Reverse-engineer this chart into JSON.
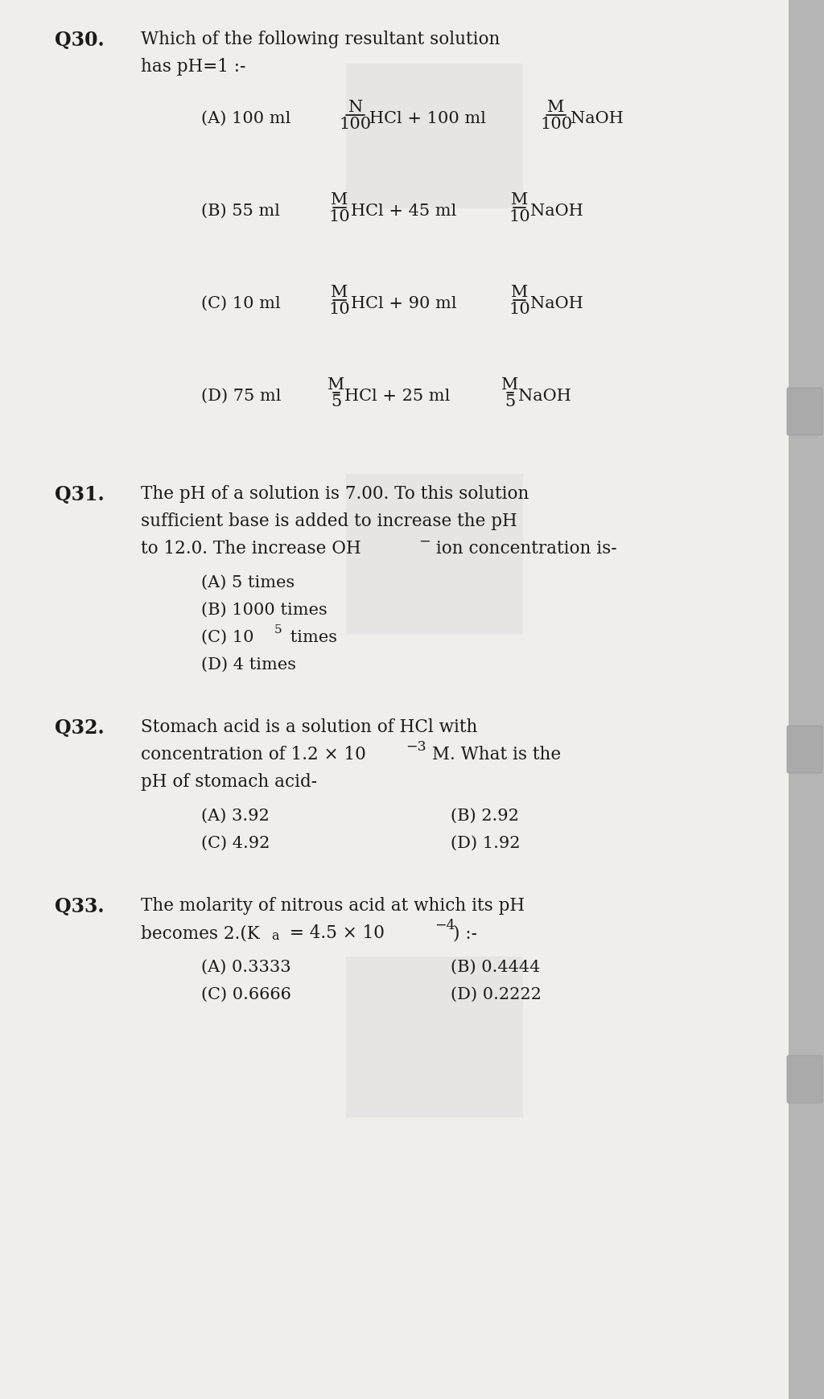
{
  "bg_color": "#f5f5f0",
  "text_color": "#1a1a1a",
  "right_tab_color": "#b8b8b8",
  "font_size_label": 17,
  "font_size_body": 15.5,
  "font_size_option": 15,
  "q30_label": "Q30.",
  "q30_line1": "Which of the following resultant solution",
  "q30_line2": "has pH=1 :-",
  "q31_label": "Q31.",
  "q31_line1": "The pH of a solution is 7.00. To this solution",
  "q31_line2": "sufficient base is added to increase the pH",
  "q31_line3": "to 12.0. The increase OH$^{-}$ ion concentration is-",
  "q31_A": "(A) 5 times",
  "q31_B": "(B) 1000 times",
  "q31_D": "(D) 4 times",
  "q32_label": "Q32.",
  "q32_line1": "Stomach acid is a solution of HCl with",
  "q32_line2": "concentration of 1.2 $\\times$ 10$^{-3}$ M. What is the",
  "q32_line3": "pH of stomach acid-",
  "q32_A": "(A) 3.92",
  "q32_B": "(B) 2.92",
  "q32_C": "(C) 4.92",
  "q32_D": "(D) 1.92",
  "q33_label": "Q33.",
  "q33_line1": "The molarity of nitrous acid at which its pH",
  "q33_line2": "becomes 2.(K$_{a}$ = 4.5 $\\times$ 10$^{-4}$) :-",
  "q33_A": "(A) 0.3333",
  "q33_B": "(B) 0.4444",
  "q33_C": "(C) 0.6666",
  "q33_D": "(D) 0.2222"
}
